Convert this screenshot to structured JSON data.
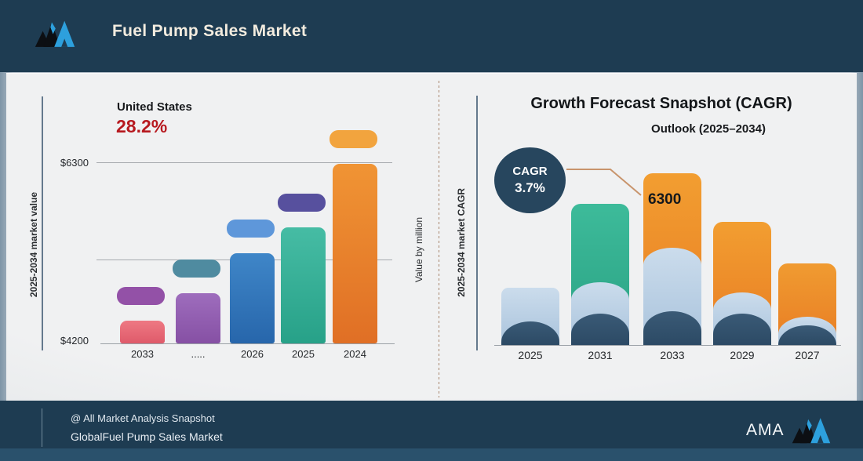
{
  "header": {
    "title": "Fuel Pump Sales Market",
    "logo_alt": "AMA logo"
  },
  "chart_data": [
    {
      "type": "bar",
      "title": "United States",
      "highlight_value": "28.2%",
      "ylabel": "2025-2034 market value",
      "secondary_axis_label": "Value by million",
      "ylim": [
        4200,
        6300
      ],
      "yticks": [
        {
          "value": 6300,
          "label": "$6300"
        },
        {
          "value": 4200,
          "label": "$4200"
        }
      ],
      "gridline_values": [
        6300,
        5250
      ],
      "categories": [
        "2033",
        ".....",
        "2026",
        "2025",
        "2024"
      ],
      "values": [
        4460,
        4780,
        5250,
        5550,
        6280
      ],
      "bar_colors": [
        [
          "#ee7983",
          "#df5a6a"
        ],
        [
          "#9e6dbd",
          "#8650a4"
        ],
        [
          "#3f86c8",
          "#2766ab"
        ],
        [
          "#46bca4",
          "#27a188"
        ],
        [
          "#f09434",
          "#e06f25"
        ]
      ],
      "cap_colors": [
        "#9351a7",
        "#4f8ba0",
        "#5e97da",
        "#57509e",
        "#f2a43e"
      ]
    },
    {
      "type": "stacked-bar",
      "title": "Growth Forecast Snapshot (CAGR)",
      "subtitle": "Outlook (2025–2034)",
      "badge": {
        "label": "CAGR",
        "value": "3.7%"
      },
      "ylabel": "2025-2034 market CAGR",
      "categories": [
        "2025",
        "2031",
        "2033",
        "2029",
        "2027"
      ],
      "totals": [
        2100,
        5180,
        6300,
        4520,
        3000
      ],
      "series": [
        {
          "name": "base",
          "values": [
            870,
            1150,
            1240,
            1150,
            720
          ],
          "colors": [
            "#3a5a76",
            "#2c4a65"
          ]
        },
        {
          "name": "mid",
          "values": [
            1230,
            1150,
            2330,
            780,
            320
          ],
          "colors": [
            "#cbdcec",
            "#a9c3dc"
          ]
        },
        {
          "name": "top",
          "values": [
            0,
            2880,
            2730,
            2590,
            1960
          ],
          "colors_by_bar": [
            null,
            [
              "#3dbb9a",
              "#2aa183"
            ],
            [
              "#f29e31",
              "#e87c23"
            ],
            [
              "#f29e31",
              "#e87c23"
            ],
            [
              "#f09b31",
              "#e87d24"
            ]
          ]
        }
      ],
      "data_label": {
        "category": "2033",
        "text": "6300"
      }
    }
  ],
  "footer": {
    "line1": "@ All Market Analysis Snapshot",
    "line2": "GlobalFuel Pump Sales Market",
    "brand": "AMA"
  },
  "colors": {
    "header_bg": "#1e3c52",
    "panel_bg": "#edeef0",
    "accent_red": "#b7191f",
    "badge_bg": "#27465e",
    "connector": "#c8946c",
    "logo_blue": "#2da0dd",
    "logo_black": "#0c0f13"
  }
}
